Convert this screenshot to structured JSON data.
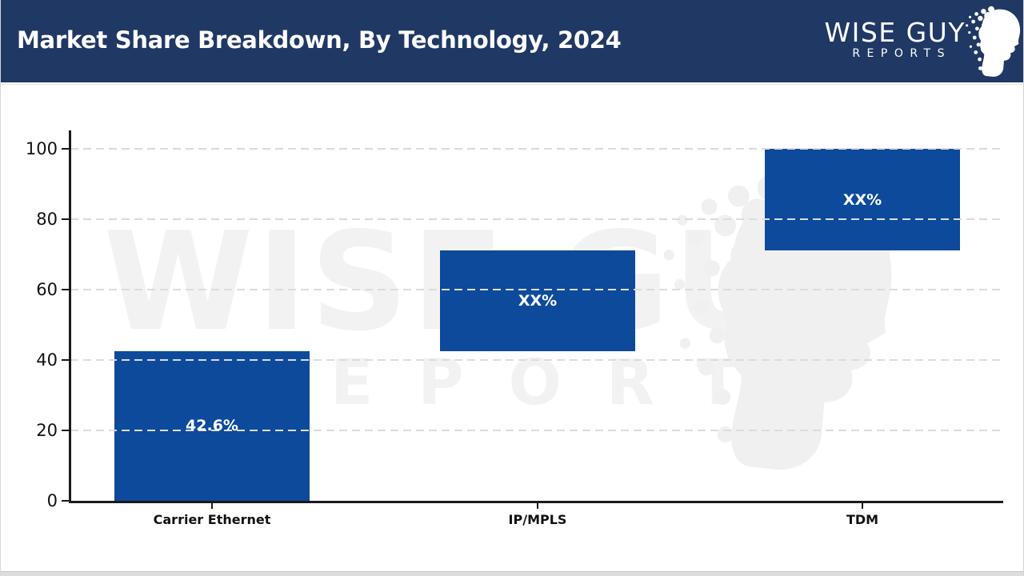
{
  "header": {
    "title": "Market Share Breakdown, By Technology, 2024",
    "logo": {
      "line1": "WISE GUY",
      "line2": "REPORTS"
    }
  },
  "watermark": {
    "line1": "WISE GUY",
    "line2": "REPORTS"
  },
  "chart_data": {
    "type": "bar",
    "subtype": "waterfall",
    "title": "Market Share Breakdown, By Technology, 2024",
    "categories": [
      "Carrier Ethernet",
      "IP/MPLS",
      "TDM"
    ],
    "segments": [
      {
        "category": "Carrier Ethernet",
        "from": 0,
        "to": 42.6,
        "label": "42.6%"
      },
      {
        "category": "IP/MPLS",
        "from": 42.6,
        "to": 71.1,
        "label": "XX%"
      },
      {
        "category": "TDM",
        "from": 71.1,
        "to": 100,
        "label": "XX%"
      }
    ],
    "yticks": [
      0,
      20,
      40,
      60,
      80,
      100
    ],
    "ylim": [
      0,
      105
    ],
    "xlabel": "",
    "ylabel": "",
    "grid": "dashed-horizontal-over-bars",
    "legend": "none",
    "bar_color": "#0d4a9c",
    "bar_label_color": "#ffffff",
    "axis_color": "#1a1a1a",
    "grid_color": "#dcdcdc"
  },
  "colors": {
    "header_bg": "#203864",
    "page_bg": "#ffffff",
    "watermark": "#f2f2f2",
    "edge_border": "#d8d8d8"
  }
}
